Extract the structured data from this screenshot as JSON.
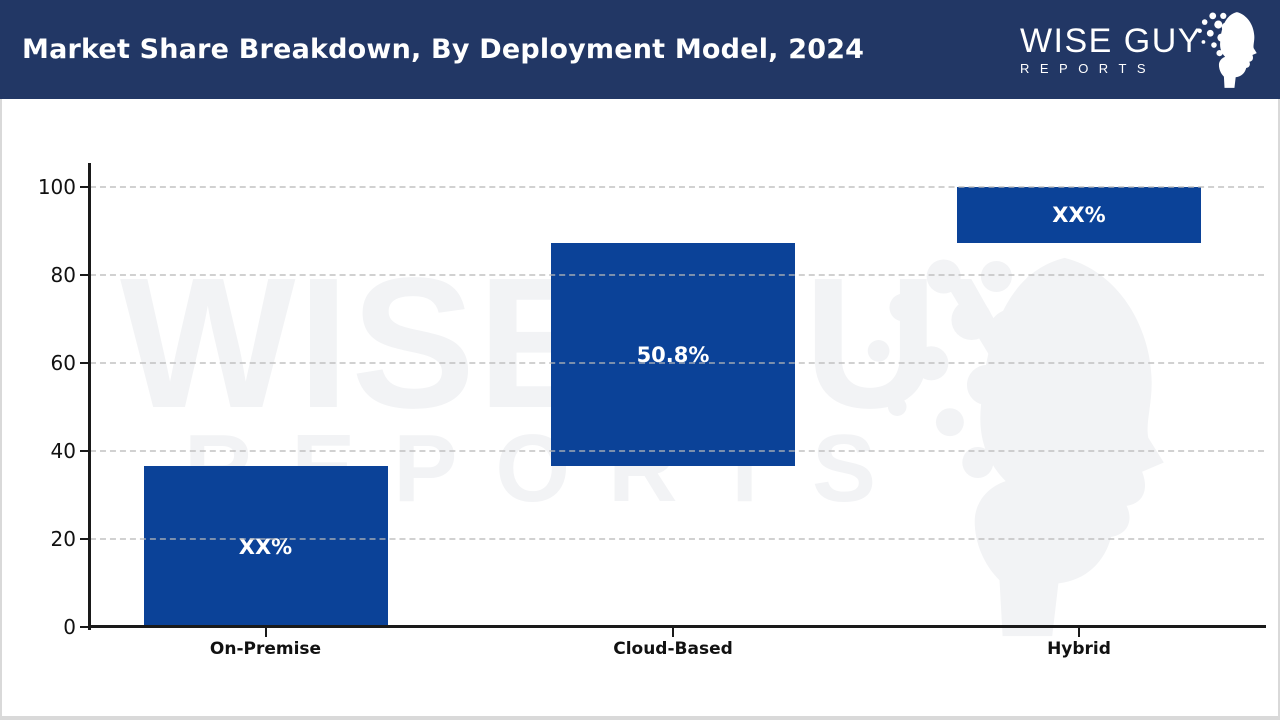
{
  "header": {
    "title": "Market Share Breakdown, By Deployment Model, 2024",
    "bg_color": "#223765",
    "logo": {
      "line1": "WISE GUY",
      "line2": "REPORTS"
    }
  },
  "watermark": {
    "line1": "WISE GUY",
    "line2": "REPORTS"
  },
  "chart_data": {
    "type": "bar",
    "subtype": "waterfall",
    "title": "Market Share Breakdown, By Deployment Model, 2024",
    "categories": [
      "On-Premise",
      "Cloud-Based",
      "Hybrid"
    ],
    "segments": [
      {
        "category": "On-Premise",
        "base": 0,
        "value": 36.5,
        "label": "XX%"
      },
      {
        "category": "Cloud-Based",
        "base": 36.5,
        "value": 50.8,
        "label": "50.8%"
      },
      {
        "category": "Hybrid",
        "base": 87.3,
        "value": 12.7,
        "label": "XX%"
      }
    ],
    "yticks": [
      0,
      20,
      40,
      60,
      80,
      100
    ],
    "ylim": [
      0,
      105
    ],
    "xlabel": "",
    "ylabel": "",
    "legend": "none",
    "grid": "horizontal-dashed",
    "bar_color": "#0b4298",
    "bar_label_color": "#ffffff",
    "axis_color": "#1a1a1a",
    "gridline_color": "#d9d9d9"
  }
}
